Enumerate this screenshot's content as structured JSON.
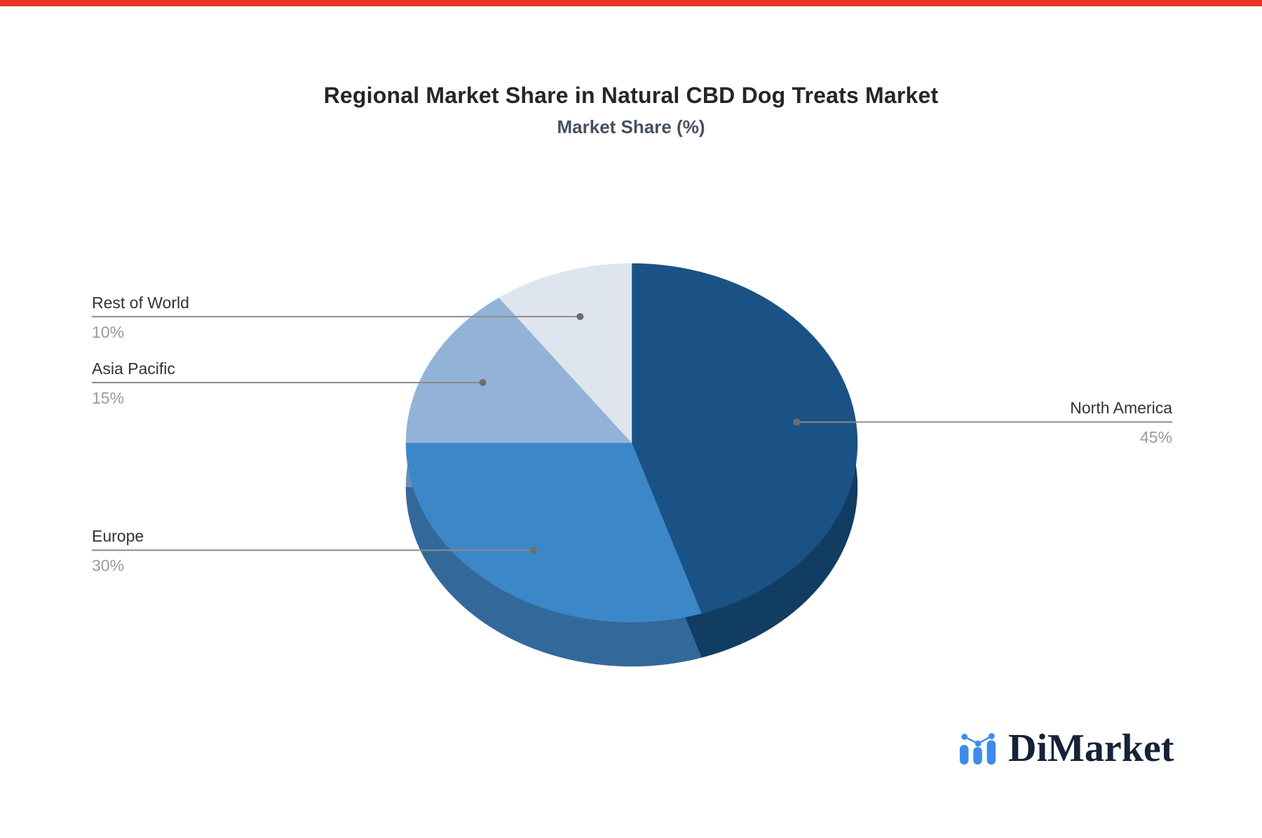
{
  "page": {
    "top_accent_color": "#ea3323",
    "background_color": "#ffffff"
  },
  "header": {
    "title": "Regional Market Share in Natural CBD Dog Treats Market",
    "subtitle": "Market Share (%)"
  },
  "chart_data": {
    "type": "pie",
    "title": "Regional Market Share in Natural CBD Dog Treats Market",
    "subtitle": "Market Share (%)",
    "unit": "%",
    "style": "3d-pie",
    "start_angle_deg": 0,
    "direction": "clockwise",
    "legend_position": "none",
    "slices": [
      {
        "label": "North America",
        "value": 45,
        "pct_label": "45%",
        "color": "#1a5285",
        "side_color": "#123d63",
        "label_side": "right"
      },
      {
        "label": "Europe",
        "value": 30,
        "pct_label": "30%",
        "color": "#3c87c8",
        "side_color": "#33699a",
        "label_side": "left"
      },
      {
        "label": "Asia Pacific",
        "value": 15,
        "pct_label": "15%",
        "color": "#92b3d7",
        "side_color": "#6f8eb3",
        "label_side": "left"
      },
      {
        "label": "Rest of World",
        "value": 10,
        "pct_label": "10%",
        "color": "#dee5ee",
        "side_color": "#a9b3c3",
        "label_side": "left"
      }
    ],
    "leader_line_color": "#8c8c8c",
    "leader_dot_color": "#6d6d6d"
  },
  "branding": {
    "name": "DiMarket",
    "icon": "bar-line-chart-icon",
    "icon_color": "#3e8bec",
    "text_color": "#15223a"
  }
}
